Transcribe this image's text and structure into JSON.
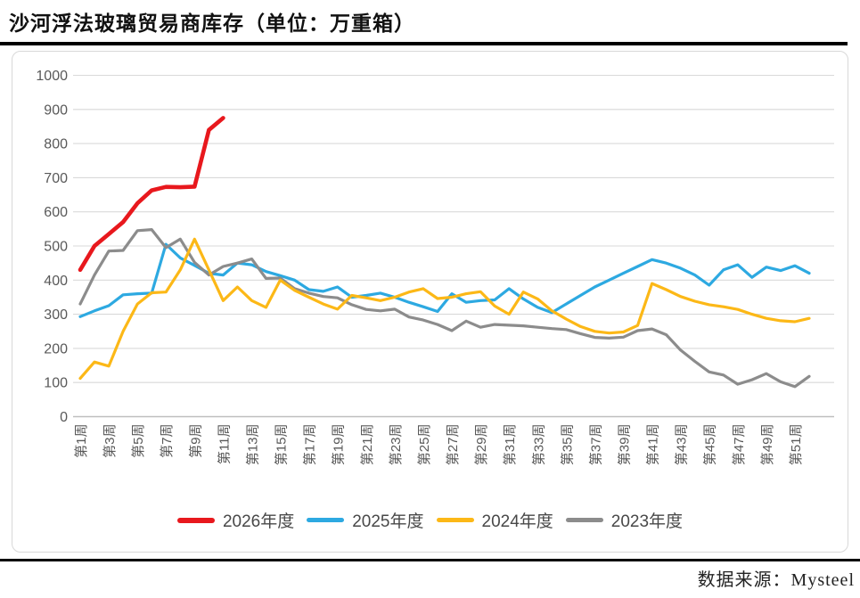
{
  "page": {
    "title": "沙河浮法玻璃贸易商库存（单位：万重箱）",
    "source": "数据来源：Mysteel"
  },
  "chart_data": {
    "type": "line",
    "title": "沙河浮法玻璃贸易商库存（单位：万重箱）",
    "xlabel": "",
    "ylabel": "",
    "unit": "万重箱",
    "ylim": [
      0,
      1000
    ],
    "ytick_step": 100,
    "ytick_labels": [
      "0",
      "100",
      "200",
      "300",
      "400",
      "500",
      "600",
      "700",
      "800",
      "900",
      "1000"
    ],
    "x_weeks_total": 52,
    "x_tick_labels": [
      "第1周",
      "第3周",
      "第5周",
      "第7周",
      "第9周",
      "第11周",
      "第13周",
      "第15周",
      "第17周",
      "第19周",
      "第21周",
      "第23周",
      "第25周",
      "第27周",
      "第29周",
      "第31周",
      "第33周",
      "第35周",
      "第37周",
      "第39周",
      "第41周",
      "第43周",
      "第45周",
      "第47周",
      "第49周",
      "第51周"
    ],
    "grid": true,
    "legend_position": "bottom",
    "layout_colors": {
      "grid": "#d9d9d9",
      "axis": "#bfbfbf",
      "tick_text": "#595959"
    },
    "series": [
      {
        "name": "2026年度",
        "color": "#e8181d",
        "stroke_width": 4.6,
        "start_week": 1,
        "values": [
          430,
          500,
          535,
          570,
          625,
          663,
          673,
          672,
          674,
          840,
          875
        ]
      },
      {
        "name": "2025年度",
        "color": "#2da9e1",
        "stroke_width": 3.2,
        "start_week": 1,
        "values": [
          293,
          310,
          325,
          357,
          360,
          362,
          505,
          465,
          443,
          420,
          415,
          450,
          445,
          425,
          413,
          400,
          372,
          367,
          380,
          350,
          355,
          362,
          350,
          335,
          322,
          308,
          360,
          335,
          340,
          342,
          375,
          345,
          320,
          305,
          330,
          355,
          380,
          400,
          420,
          440,
          460,
          450,
          435,
          415,
          385,
          430,
          445,
          408,
          438,
          428,
          442,
          420
        ]
      },
      {
        "name": "2024年度",
        "color": "#fcb817",
        "stroke_width": 3.2,
        "start_week": 1,
        "values": [
          112,
          160,
          148,
          250,
          330,
          363,
          365,
          430,
          520,
          430,
          340,
          380,
          340,
          320,
          400,
          370,
          350,
          330,
          315,
          355,
          348,
          340,
          350,
          365,
          375,
          346,
          350,
          360,
          366,
          324,
          300,
          365,
          345,
          310,
          286,
          264,
          250,
          245,
          248,
          267,
          390,
          372,
          352,
          338,
          328,
          322,
          314,
          300,
          288,
          281,
          278,
          288
        ]
      },
      {
        "name": "2023年度",
        "color": "#8c8c8c",
        "stroke_width": 3.2,
        "start_week": 1,
        "values": [
          330,
          415,
          485,
          487,
          545,
          548,
          495,
          520,
          452,
          415,
          440,
          450,
          462,
          405,
          406,
          375,
          362,
          352,
          348,
          328,
          314,
          310,
          315,
          292,
          283,
          270,
          252,
          280,
          262,
          270,
          268,
          266,
          262,
          258,
          255,
          243,
          232,
          230,
          233,
          252,
          257,
          240,
          195,
          162,
          131,
          122,
          95,
          108,
          126,
          102,
          88,
          118
        ]
      }
    ]
  }
}
